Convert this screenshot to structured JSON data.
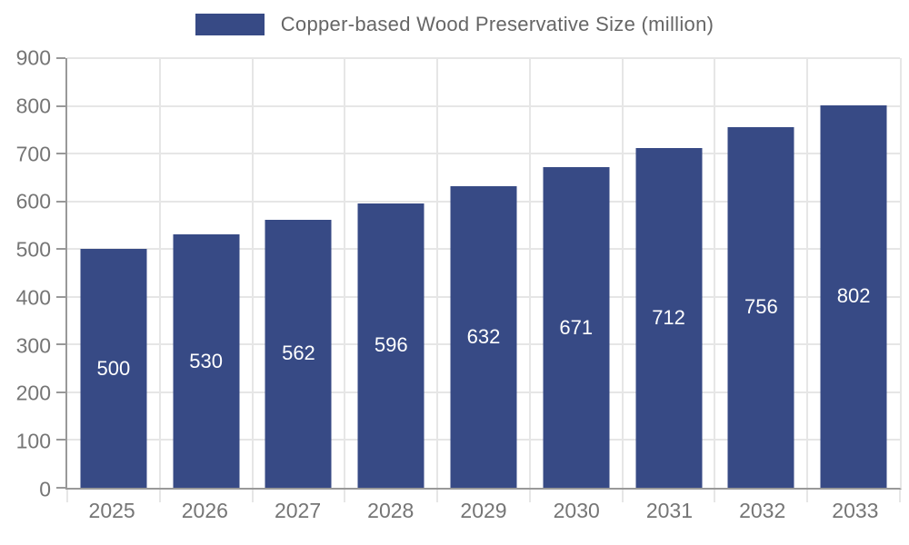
{
  "legend": {
    "label": "Copper-based Wood Preservative Size (million)"
  },
  "colors": {
    "bar": "#374a85",
    "bar_label": "#ffffff",
    "grid": "#e6e6e6",
    "axis": "#999999",
    "tick_text": "#757575",
    "legend_text": "#666666",
    "background": "#ffffff"
  },
  "chart_data": {
    "type": "bar",
    "title": "Copper-based Wood Preservative Size (million)",
    "categories": [
      "2025",
      "2026",
      "2027",
      "2028",
      "2029",
      "2030",
      "2031",
      "2032",
      "2033"
    ],
    "values": [
      500,
      530,
      562,
      596,
      632,
      671,
      712,
      756,
      802
    ],
    "xlabel": "",
    "ylabel": "",
    "ylim": [
      0,
      900
    ],
    "yticks": [
      0,
      100,
      200,
      300,
      400,
      500,
      600,
      700,
      800,
      900
    ],
    "grid": true,
    "legend_position": "top",
    "bar_value_labels": "inside-center"
  }
}
